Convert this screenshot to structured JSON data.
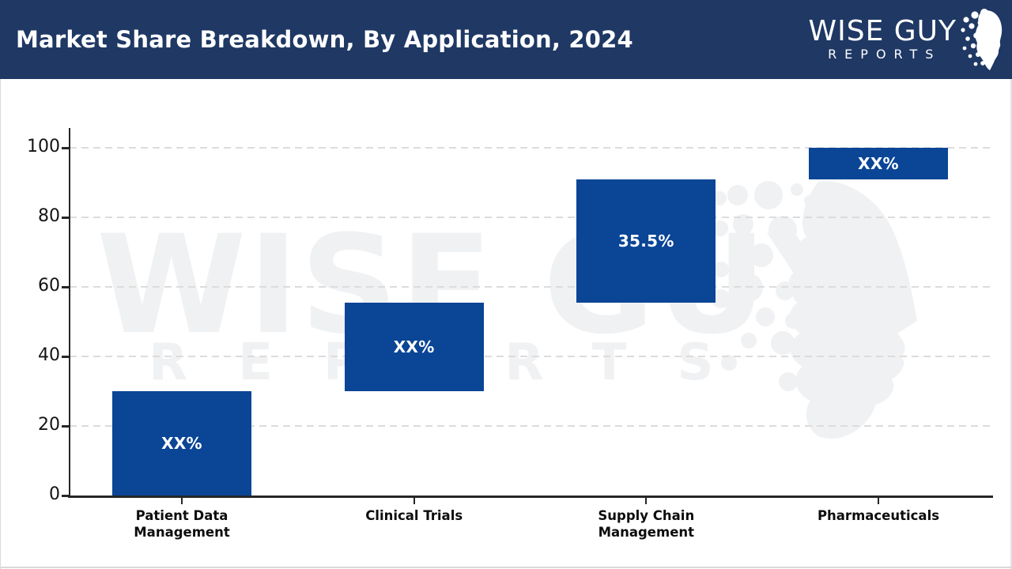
{
  "header": {
    "title": "Market Share Breakdown, By Application, 2024",
    "logo": {
      "wordmark": "WISE GUY",
      "subtext": "REPORTS"
    }
  },
  "watermark": {
    "wordmark": "WISE GUY",
    "subtext": "REPORTS"
  },
  "colors": {
    "header_bg": "#1f3864",
    "bar": "#0a4596",
    "grid": "#dcdcdc",
    "axis": "#262626",
    "bar_label": "#ffffff",
    "watermark": "#f0f1f3"
  },
  "chart_data": {
    "type": "bar",
    "variant": "waterfall",
    "title": "Market Share Breakdown, By Application, 2024",
    "categories": [
      "Patient Data Management",
      "Clinical Trials",
      "Supply Chain Management",
      "Pharmaceuticals"
    ],
    "segments": [
      {
        "category": "Patient Data Management",
        "category_lines": [
          "Patient Data",
          "Management"
        ],
        "start": 0,
        "end": 30,
        "label": "XX%"
      },
      {
        "category": "Clinical Trials",
        "category_lines": [
          "Clinical Trials"
        ],
        "start": 30,
        "end": 55.5,
        "label": "XX%"
      },
      {
        "category": "Supply Chain Management",
        "category_lines": [
          "Supply Chain",
          "Management"
        ],
        "start": 55.5,
        "end": 91,
        "label": "35.5%"
      },
      {
        "category": "Pharmaceuticals",
        "category_lines": [
          "Pharmaceuticals"
        ],
        "start": 91,
        "end": 100,
        "label": "XX%"
      }
    ],
    "xlabel": "",
    "ylabel": "",
    "yticks": [
      0,
      20,
      40,
      60,
      80,
      100
    ],
    "ylim": [
      0,
      105
    ],
    "grid": "horizontal-dashed",
    "legend": "none"
  }
}
